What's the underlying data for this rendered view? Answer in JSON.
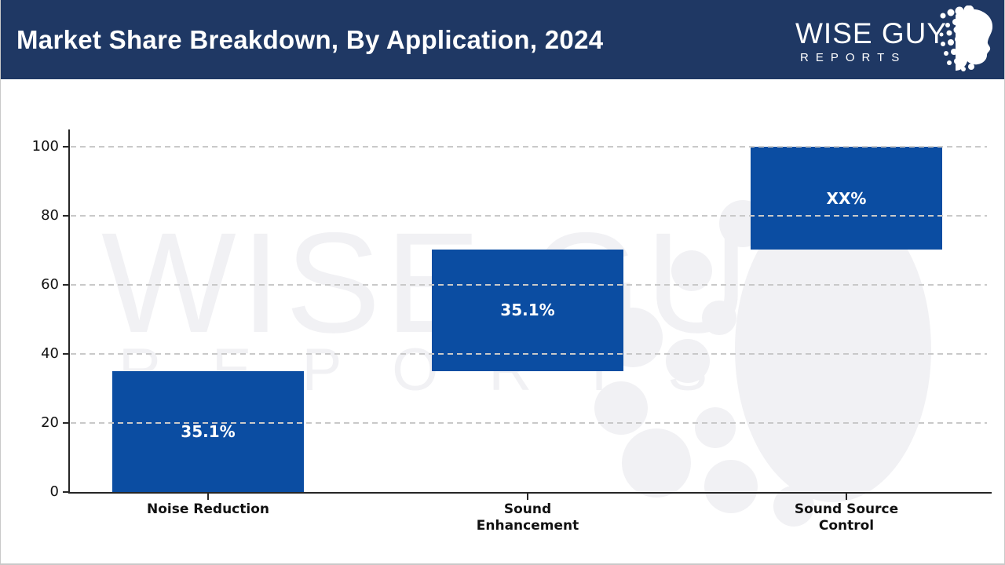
{
  "header": {
    "title": "Market Share Breakdown, By Application, 2024",
    "logo": {
      "line1": "WISE GUY",
      "line2": "REPORTS"
    }
  },
  "watermark": {
    "line1": "WISE GUY",
    "line2": "REPORTS"
  },
  "colors": {
    "header_bg": "#1f3864",
    "bar_fill": "#0b4da2",
    "bar_label": "#ffffff",
    "gridline": "#c9c9c9",
    "axis": "#262626",
    "watermark": "#f1f1f4"
  },
  "chart_data": {
    "type": "bar",
    "subtype": "stacked-waterfall",
    "title": "Market Share Breakdown, By Application, 2024",
    "categories": [
      "Noise Reduction",
      "Sound Enhancement",
      "Sound Source Control"
    ],
    "segments": [
      {
        "category": "Noise Reduction",
        "start": 0,
        "end": 35.1,
        "label": "35.1%"
      },
      {
        "category": "Sound Enhancement",
        "start": 35.1,
        "end": 70.2,
        "label": "35.1%"
      },
      {
        "category": "Sound Source Control",
        "start": 70.2,
        "end": 100,
        "label": "XX%"
      }
    ],
    "xlabel": "",
    "ylabel": "",
    "ylim": [
      0,
      105
    ],
    "yticks": [
      0,
      20,
      40,
      60,
      80,
      100
    ],
    "grid": "horizontal dashed, drawn over bars",
    "legend": "none"
  }
}
